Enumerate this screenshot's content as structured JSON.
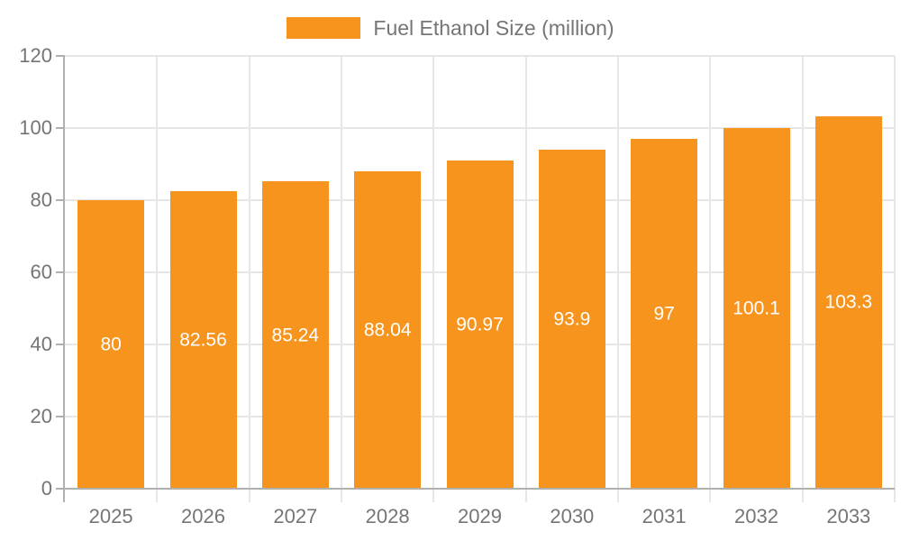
{
  "chart_data": {
    "type": "bar",
    "title": "",
    "legend": "Fuel Ethanol Size (million)",
    "legend_position": "top-center",
    "categories": [
      "2025",
      "2026",
      "2027",
      "2028",
      "2029",
      "2030",
      "2031",
      "2032",
      "2033"
    ],
    "values": [
      80,
      82.56,
      85.24,
      88.04,
      90.97,
      93.9,
      97,
      100.1,
      103.3
    ],
    "value_labels": [
      "80",
      "82.56",
      "85.24",
      "88.04",
      "90.97",
      "93.9",
      "97",
      "100.1",
      "103.3"
    ],
    "xlabel": "",
    "ylabel": "",
    "ylim": [
      0,
      120
    ],
    "yticks": [
      0,
      20,
      40,
      60,
      80,
      100,
      120
    ],
    "grid": true
  },
  "colors": {
    "bar": "#f7941e",
    "value_label": "#ffffff",
    "tick_label": "#757575",
    "legend_label": "#757575",
    "axis_line": "#b0b0b0",
    "grid_line": "#e6e6e6"
  }
}
